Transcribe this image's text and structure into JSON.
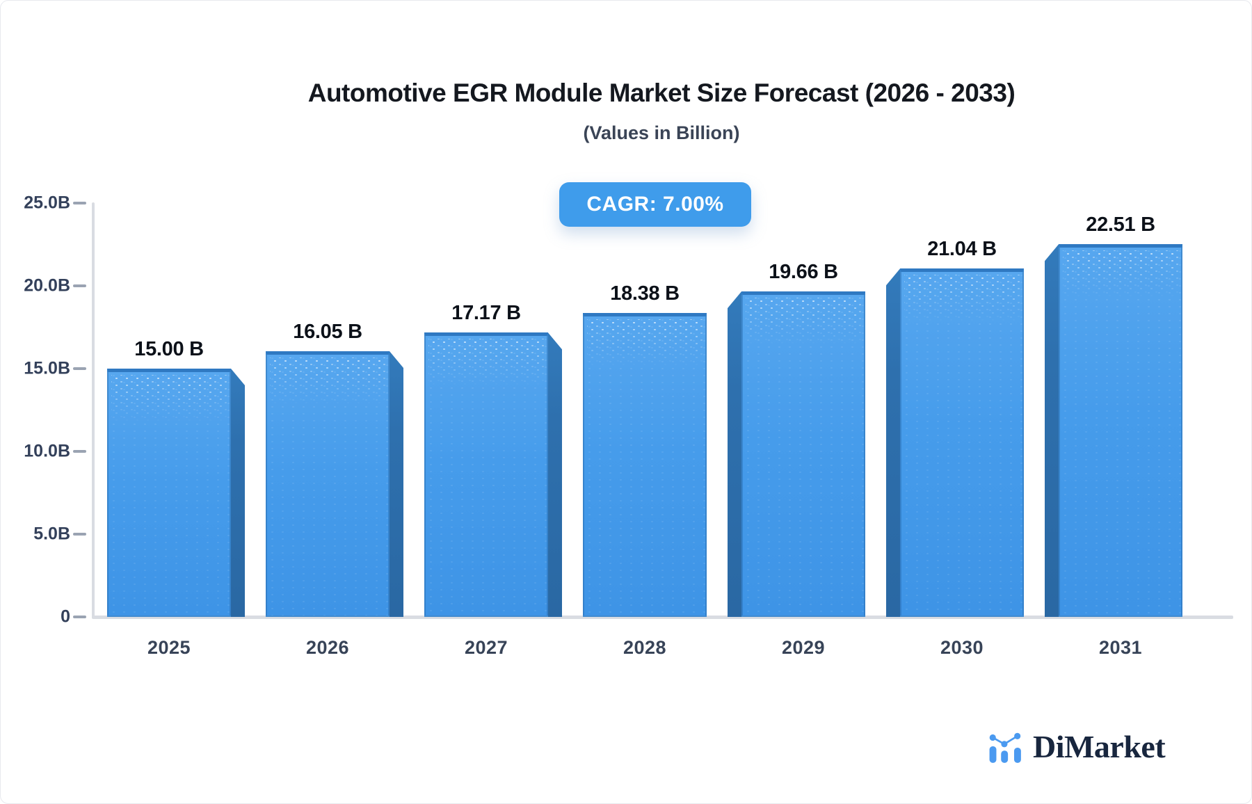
{
  "title": "Automotive EGR Module Market Size Forecast (2026 - 2033)",
  "subtitle": "(Values in Billion)",
  "cagr_badge": "CAGR: 7.00%",
  "chart_data": {
    "type": "bar",
    "title": "Automotive EGR Module Market Size Forecast (2026 - 2033)",
    "subtitle": "(Values in Billion)",
    "categories": [
      "2025",
      "2026",
      "2027",
      "2028",
      "2029",
      "2030",
      "2031"
    ],
    "values": [
      15.0,
      16.05,
      17.17,
      18.38,
      19.66,
      21.04,
      22.51
    ],
    "bar_labels": [
      "15.00 B",
      "16.05 B",
      "17.17 B",
      "18.38 B",
      "19.66 B",
      "21.04 B",
      "22.51 B"
    ],
    "unit": "Billion",
    "xlabel": "",
    "ylabel": "",
    "ylim": [
      0,
      25
    ],
    "y_ticks": [
      {
        "label": "25.0B",
        "value": 25
      },
      {
        "label": "20.0B",
        "value": 20
      },
      {
        "label": "15.0B",
        "value": 15
      },
      {
        "label": "10.0B",
        "value": 10
      },
      {
        "label": "5.0B",
        "value": 5
      },
      {
        "label": "0",
        "value": 0
      }
    ],
    "grid": false,
    "legend": false,
    "style": "3d-perspective bars with dotted highlight, side bevels facing center",
    "bar_color": "#469ceb",
    "bar_side_color": "#2e70ae",
    "annotation": "CAGR: 7.00%"
  },
  "colors": {
    "badge_bg": "#3f9ceb",
    "badge_text": "#ffffff",
    "axis": "#d9dce2",
    "tick": "#9aa3b2",
    "axis_text": "#33405a",
    "value_text": "#0c1119",
    "title_text": "#14181f",
    "subtitle_text": "#3a4456",
    "logo_navy": "#18263e",
    "logo_blue": "#4b9af0"
  },
  "branding": {
    "logo_text": "DiMarket",
    "logo_icon": "bar-chart-trendline-icon"
  }
}
